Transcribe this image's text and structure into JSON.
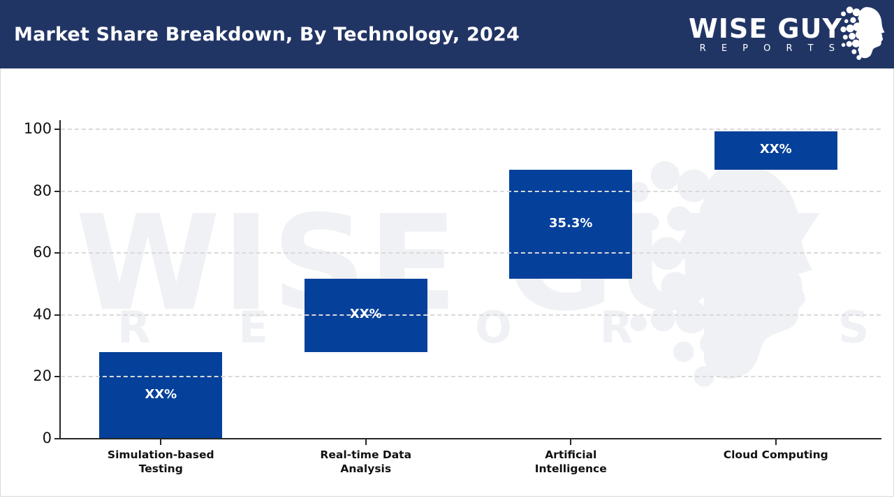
{
  "header": {
    "title": "Market Share Breakdown, By Technology, 2024",
    "logo_line1": "WISE GUY",
    "logo_line2": "R E P O R T S"
  },
  "watermark": {
    "line1": "WISE GUY",
    "line2": "R E P O R T S"
  },
  "chart_data": {
    "type": "bar",
    "variant": "floating-waterfall",
    "title": "Market Share Breakdown, By Technology, 2024",
    "categories": [
      "Simulation-based\nTesting",
      "Real-time Data\nAnalysis",
      "Artificial\nIntelligence",
      "Cloud Computing"
    ],
    "series": [
      {
        "name": "Market share (%)",
        "segments": [
          {
            "start": 0,
            "end": 28.0,
            "label": "XX%"
          },
          {
            "start": 28.0,
            "end": 51.6,
            "label": "XX%"
          },
          {
            "start": 51.6,
            "end": 86.9,
            "label": "35.3%"
          },
          {
            "start": 86.9,
            "end": 99.4,
            "label": "XX%"
          }
        ]
      }
    ],
    "xlabel": "",
    "ylabel": "",
    "y_ticks": [
      0,
      20,
      40,
      60,
      80,
      100
    ],
    "ylim": [
      0,
      103
    ],
    "grid": true,
    "grid_style": "dashed",
    "grid_above_bars": true,
    "legend": false
  },
  "colors": {
    "header_bg": "#213565",
    "bar": "#05409a",
    "bar_label": "#ffffff",
    "axis": "#262626",
    "grid": "#d9d9d9",
    "watermark": "#f0f1f4",
    "frame_border": "#d9d9d9",
    "text": "#111111"
  }
}
